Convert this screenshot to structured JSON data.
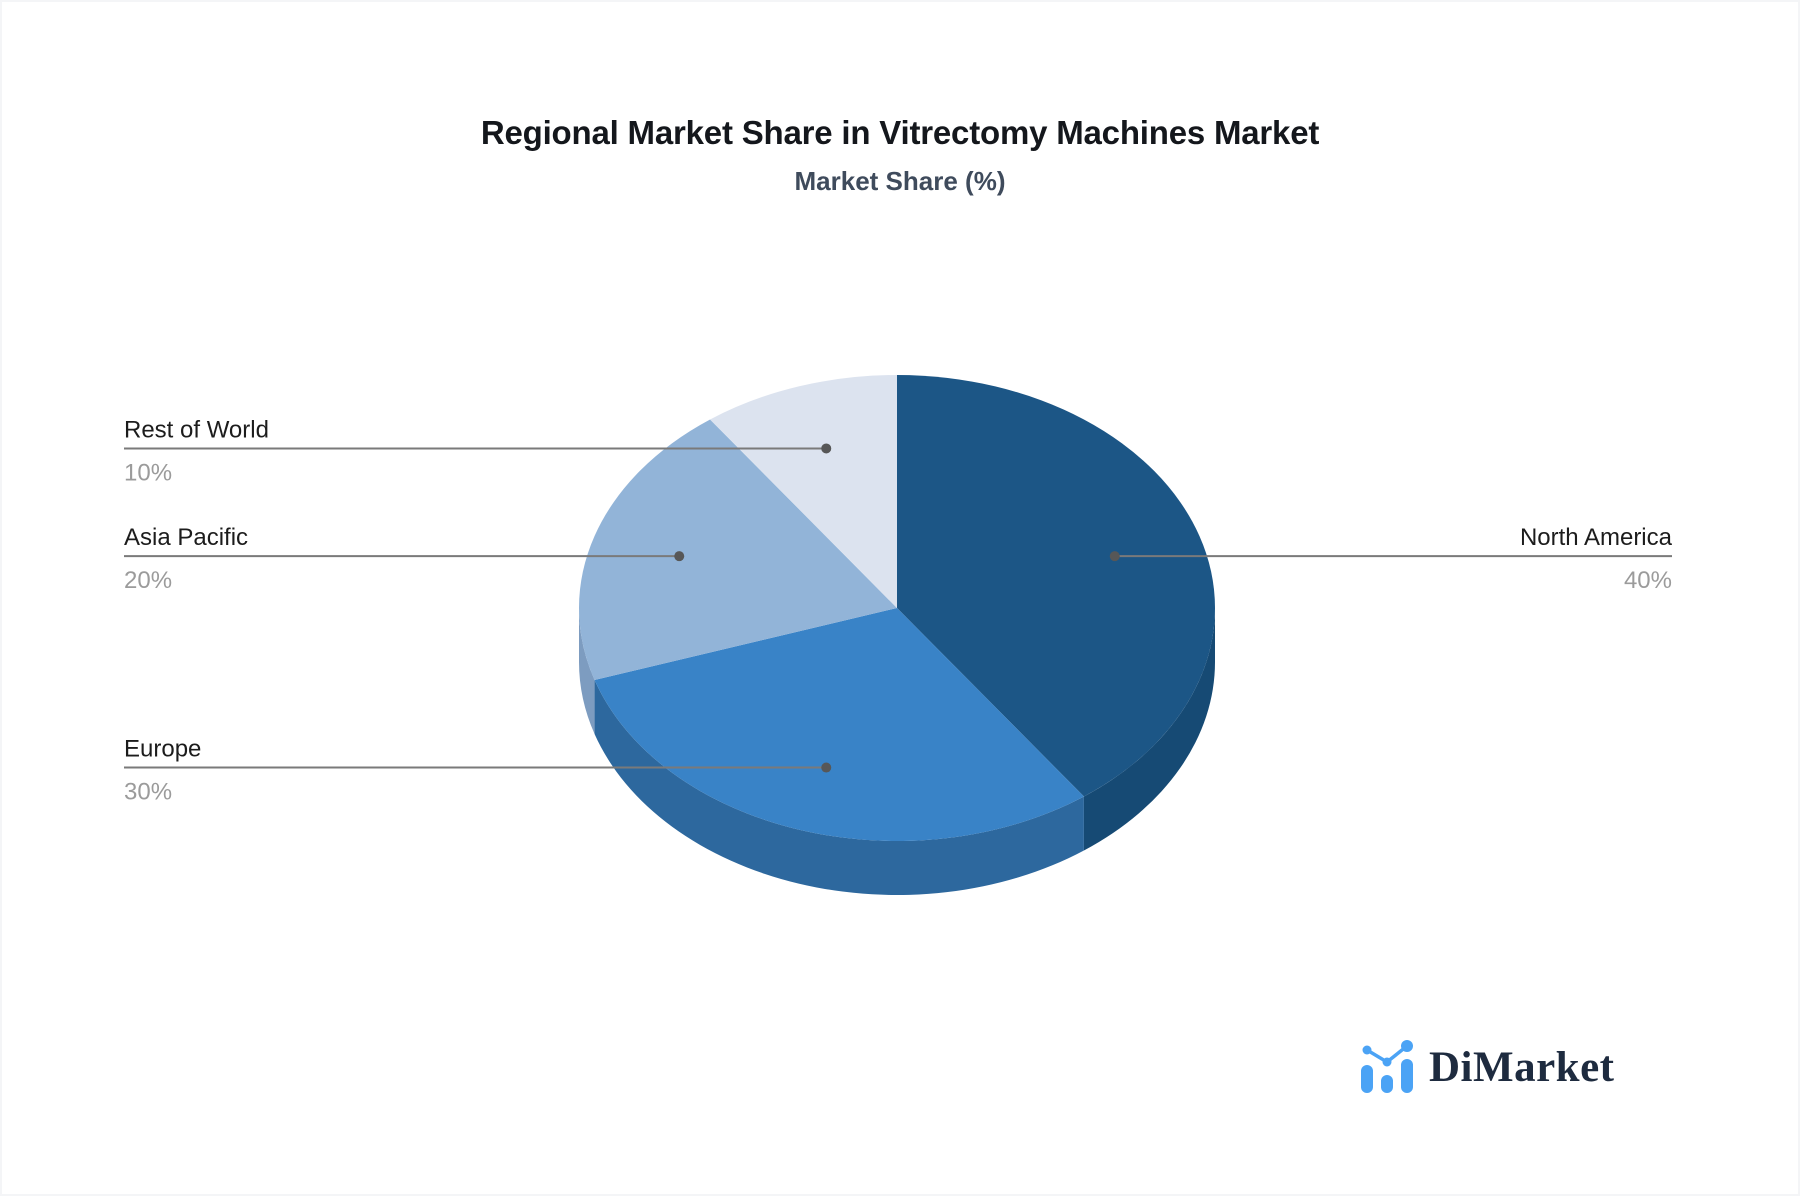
{
  "title": "Regional Market Share in Vitrectomy Machines Market",
  "subtitle": "Market Share (%)",
  "brand": {
    "name": "DiMarket",
    "accent_color": "#4ba3f5",
    "text_color": "#1e2b3f"
  },
  "chart_data": {
    "type": "pie",
    "effect": "3d",
    "title": "Regional Market Share in Vitrectomy Machines Market",
    "subtitle": "Market Share (%)",
    "unit": "%",
    "direction": "clockwise",
    "start_angle_deg": 0,
    "legend": "none",
    "leader_line_color": "#7a7a7a",
    "leader_dot_color": "#575757",
    "label_color": "#1c1c1c",
    "pct_color": "#9b9b9b",
    "slices": [
      {
        "label": "North America",
        "value": 40,
        "pct_label": "40%",
        "color": "#1c5686",
        "side_color": "#164a74"
      },
      {
        "label": "Europe",
        "value": 30,
        "pct_label": "30%",
        "color": "#3983c7",
        "side_color": "#2d689e"
      },
      {
        "label": "Asia Pacific",
        "value": 20,
        "pct_label": "20%",
        "color": "#92b4d8",
        "side_color": "#7d9cc0"
      },
      {
        "label": "Rest of World",
        "value": 10,
        "pct_label": "10%",
        "color": "#dce3ef",
        "side_color": "#c3cede"
      }
    ]
  }
}
